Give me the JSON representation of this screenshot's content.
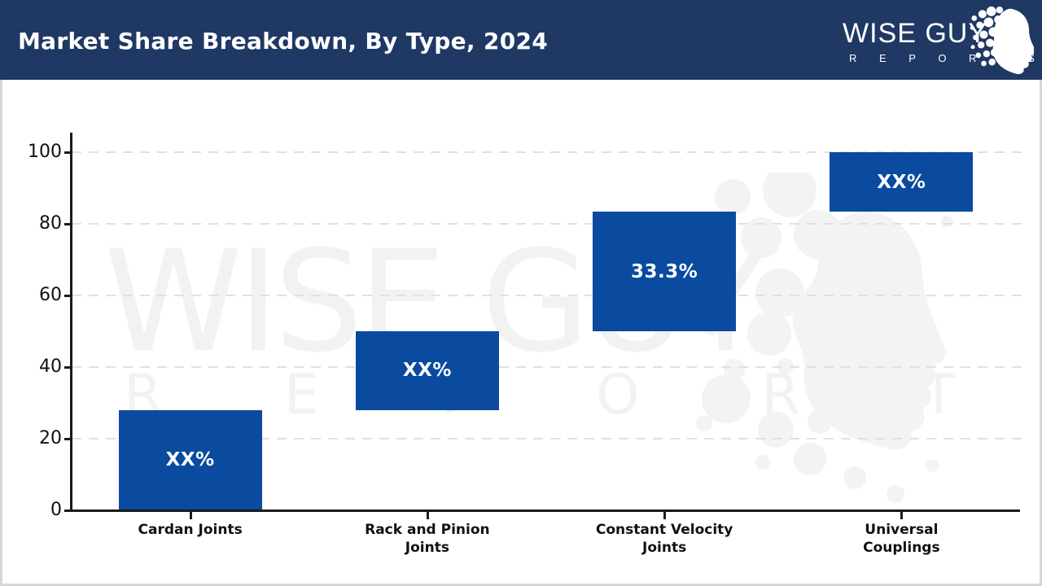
{
  "header": {
    "title": "Market Share Breakdown, By Type, 2024",
    "logo": {
      "brand": "WISE GUY",
      "tagline": "R E P O R T S",
      "face_icon": "dotted-head-profile"
    }
  },
  "watermark": {
    "brand": "WISE GUY",
    "tagline": "R E P O R T S",
    "face_icon": "dotted-head-profile"
  },
  "chart_data": {
    "type": "bar",
    "subtype": "floating-waterfall",
    "title": "Market Share Breakdown, By Type, 2024",
    "xlabel": "",
    "ylabel": "",
    "ylim": [
      0,
      100
    ],
    "yticks": [
      0,
      20,
      40,
      60,
      80,
      100
    ],
    "grid": "horizontal-dashed",
    "legend": "none",
    "categories": [
      "Cardan Joints",
      "Rack and Pinion\nJoints",
      "Constant Velocity\nJoints",
      "Universal\nCouplings"
    ],
    "series": [
      {
        "name": "Market share (%)",
        "segments": [
          {
            "category": "Cardan Joints",
            "start": 0,
            "end": 28,
            "label": "XX%"
          },
          {
            "category": "Rack and Pinion Joints",
            "start": 28,
            "end": 50,
            "label": "XX%"
          },
          {
            "category": "Constant Velocity Joints",
            "start": 50,
            "end": 83.3,
            "label": "33.3%"
          },
          {
            "category": "Universal Couplings",
            "start": 83.3,
            "end": 100,
            "label": "XX%"
          }
        ]
      }
    ],
    "colors": {
      "bar": "#0a4a9f",
      "bar_label": "#ffffff",
      "axis": "#1a1a1a",
      "gridline": "#e0e0e0",
      "header_bg": "#1f3864",
      "watermark": "#f2f2f2"
    }
  }
}
